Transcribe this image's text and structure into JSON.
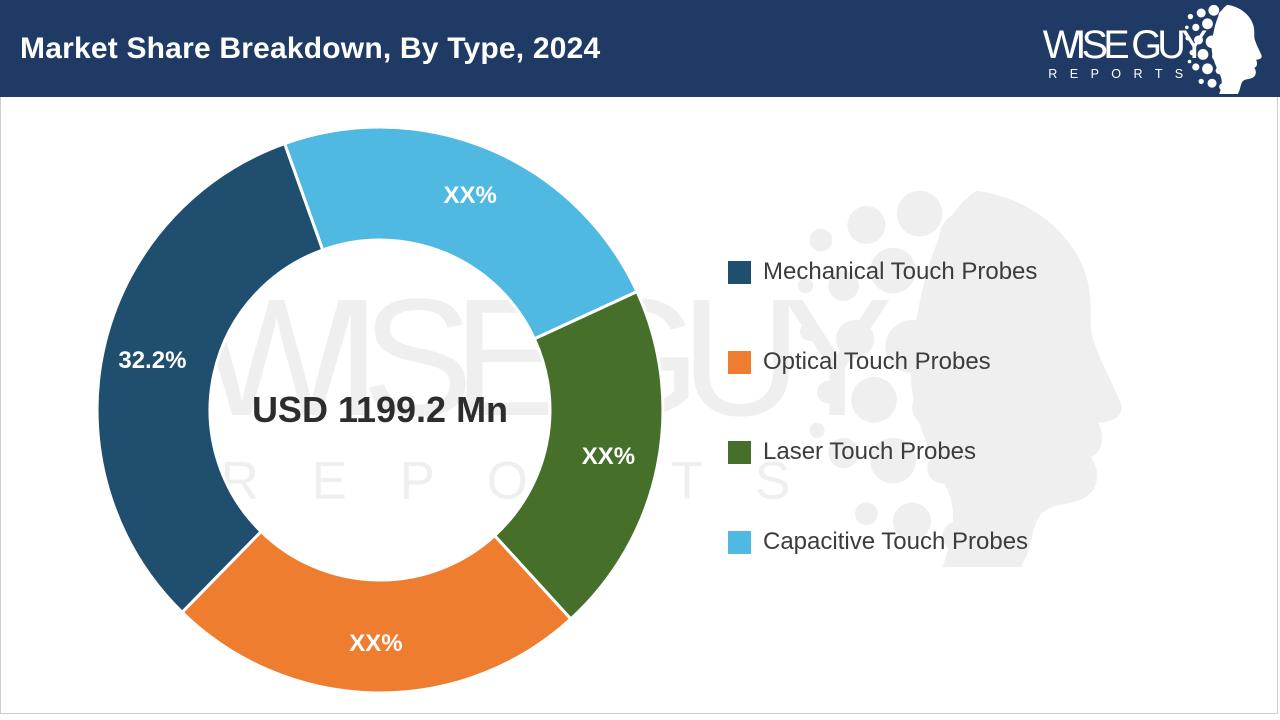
{
  "header": {
    "title": "Market Share Breakdown, By Type, 2024",
    "bg_color": "#1f3a64",
    "logo": {
      "line1": "WISE GUY",
      "line2": "R E P O R T S"
    }
  },
  "chart_data": {
    "type": "donut",
    "title": "Market Share Breakdown, By Type, 2024",
    "center_label": "USD 1199.2 Mn",
    "units": "percent",
    "start_angle_deg": -19.7,
    "direction": "clockwise",
    "segments": [
      {
        "label": "Mechanical Touch Probes",
        "display": "32.2%",
        "value": 32.2,
        "color": "#1f4e6e"
      },
      {
        "label": "Optical Touch Probes",
        "display": "XX%",
        "value": 24.1,
        "color": "#ee7d30"
      },
      {
        "label": "Laser Touch Probes",
        "display": "XX%",
        "value": 20.1,
        "color": "#46702a"
      },
      {
        "label": "Capacitive Touch Probes",
        "display": "XX%",
        "value": 23.6,
        "color": "#4fb9e2"
      }
    ],
    "draw_order_clockwise_from_top": [
      3,
      2,
      1,
      0
    ],
    "legend_position": "right"
  }
}
